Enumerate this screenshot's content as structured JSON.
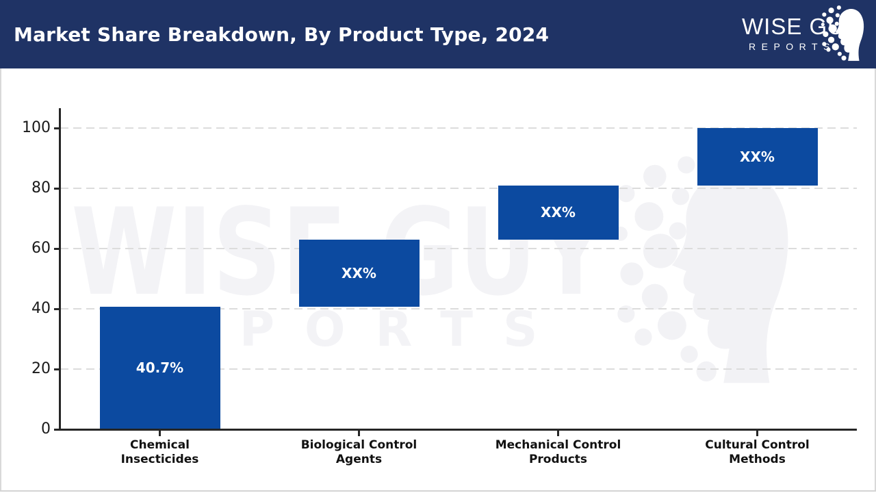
{
  "header": {
    "title": "Market Share Breakdown, By Product Type, 2024",
    "bg_color": "#1f3365",
    "logo": {
      "line1": "WISE GUY",
      "line2": "REPORTS"
    }
  },
  "watermark": {
    "line1": "WISE GUY",
    "line2": "REPORTS"
  },
  "chart_data": {
    "type": "bar",
    "subtype": "waterfall",
    "title": "Market Share Breakdown, By Product Type, 2024",
    "categories": [
      "Chemical Insecticides",
      "Biological Control Agents",
      "Mechanical Control Products",
      "Cultural Control Methods"
    ],
    "category_label_lines": [
      [
        "Chemical",
        "Insecticides"
      ],
      [
        "Biological Control",
        "Agents"
      ],
      [
        "Mechanical Control",
        "Products"
      ],
      [
        "Cultural Control",
        "Methods"
      ]
    ],
    "segments": [
      {
        "start": 0,
        "end": 40.7,
        "label": "40.7%"
      },
      {
        "start": 40.7,
        "end": 63.0,
        "label": "XX%"
      },
      {
        "start": 63.0,
        "end": 81.0,
        "label": "XX%"
      },
      {
        "start": 81.0,
        "end": 100,
        "label": "XX%"
      }
    ],
    "values": [
      40.7,
      22.3,
      18.0,
      19.0
    ],
    "labels": [
      "40.7%",
      "XX%",
      "XX%",
      "XX%"
    ],
    "xlabel": "",
    "ylabel": "",
    "ylim": [
      0,
      100
    ],
    "yticks": [
      0,
      20,
      40,
      60,
      80,
      100
    ],
    "bar_color": "#0c4aa0",
    "grid": true,
    "legend": false
  }
}
